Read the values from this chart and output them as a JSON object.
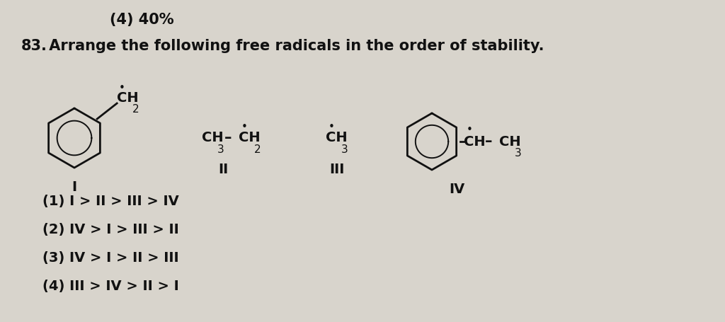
{
  "top_label": "(4) 40%",
  "title_num": "83.",
  "title_text": " Arrange the following free radicals in the order of stability.",
  "options": [
    "(1) I > II > III > IV",
    "(2) IV > I > III > II",
    "(3) IV > I > II > III",
    "(4) III > IV > II > I"
  ],
  "bg_color": "#d8d4cc",
  "text_color": "#111111",
  "font_size_title": 15,
  "font_size_options": 14,
  "font_size_roman": 14,
  "font_size_struct": 13,
  "font_size_sub": 10,
  "font_size_dot": 11
}
